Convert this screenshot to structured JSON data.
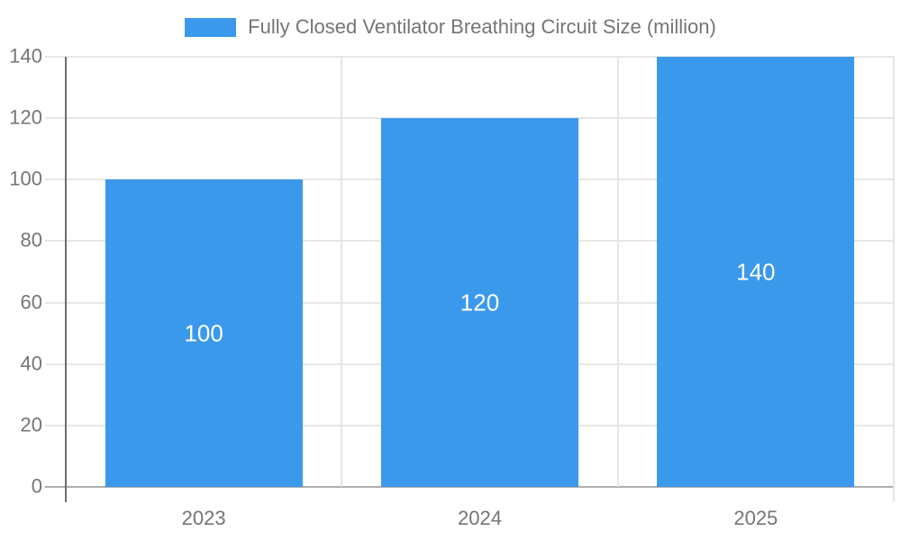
{
  "legend": {
    "label": "Fully Closed Ventilator Breathing Circuit Size (million)"
  },
  "colors": {
    "bar": "#3B99EC",
    "gridline": "#E6E6E6",
    "baseline": "#ADADAD",
    "axis_line": "#6E6E6E",
    "axis_text": "#757575",
    "value_label": "#FFFFFF"
  },
  "chart_data": {
    "type": "bar",
    "title": "",
    "xlabel": "",
    "ylabel": "",
    "categories": [
      "2023",
      "2024",
      "2025"
    ],
    "series": [
      {
        "name": "Fully Closed Ventilator Breathing Circuit Size (million)",
        "values": [
          100,
          120,
          140
        ],
        "color": "#3B99EC"
      }
    ],
    "data_labels": [
      "100",
      "120",
      "140"
    ],
    "ylim": [
      0,
      140
    ],
    "ytick_step": 20,
    "yticks": [
      0,
      20,
      40,
      60,
      80,
      100,
      120,
      140
    ],
    "grid": true,
    "grid_vertical": true,
    "legend_position": "top-center"
  }
}
